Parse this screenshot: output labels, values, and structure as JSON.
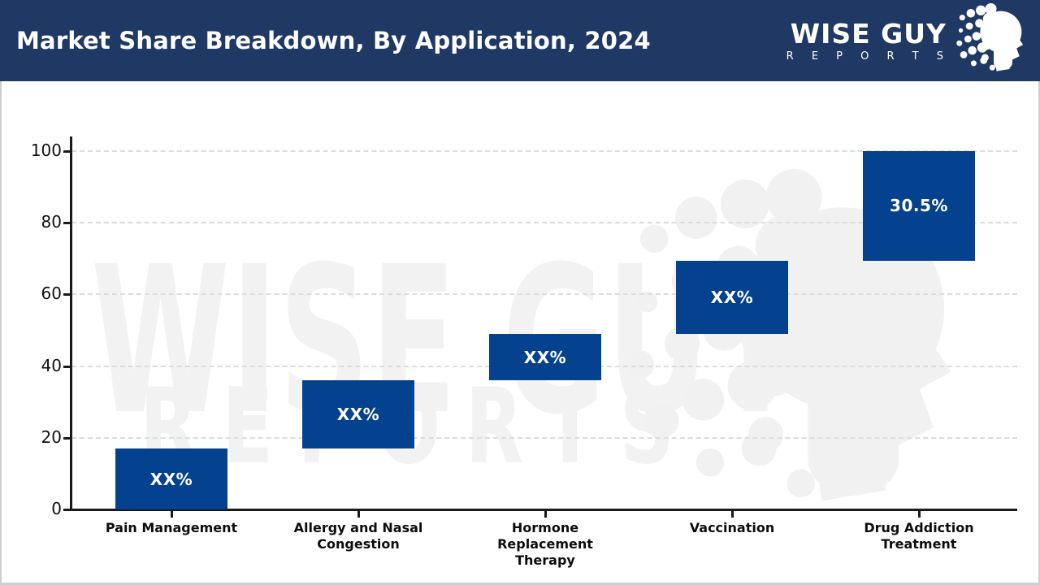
{
  "header": {
    "title": "Market Share Breakdown, By Application, 2024",
    "logo": {
      "line1": "WISE GUY",
      "line2": "R E P O R T S"
    }
  },
  "watermark": {
    "line1": "WISE GUY",
    "line2": "REPORTS"
  },
  "chart_data": {
    "type": "bar",
    "subtype": "waterfall",
    "title": "Market Share Breakdown, By Application, 2024",
    "xlabel": "",
    "ylabel": "",
    "ylim": [
      0,
      100
    ],
    "yticks": [
      0,
      20,
      40,
      60,
      80,
      100
    ],
    "grid": "horizontal-dashed",
    "legend": "none",
    "bar_color": "#04418f",
    "bar_label_color": "#ffffff",
    "categories": [
      "Pain Management",
      "Allergy and Nasal\nCongestion",
      "Hormone\nReplacement\nTherapy",
      "Vaccination",
      "Drug Addiction\nTreatment"
    ],
    "segments": [
      {
        "category": "Pain Management",
        "start": 0,
        "end": 17,
        "value": 17,
        "label": "XX%"
      },
      {
        "category": "Allergy and Nasal Congestion",
        "start": 17,
        "end": 36,
        "value": 19,
        "label": "XX%"
      },
      {
        "category": "Hormone Replacement Therapy",
        "start": 36,
        "end": 49,
        "value": 13,
        "label": "XX%"
      },
      {
        "category": "Vaccination",
        "start": 49,
        "end": 69.5,
        "value": 20.5,
        "label": "XX%"
      },
      {
        "category": "Drug Addiction Treatment",
        "start": 69.5,
        "end": 100,
        "value": 30.5,
        "label": "30.5%"
      }
    ]
  },
  "colors": {
    "header_bg": "#1f3864",
    "bar": "#04418f",
    "gridline": "#dcdcdc",
    "axis": "#1a1a1a",
    "watermark": "#f2f2f2",
    "page_edge": "#cfcfcf"
  }
}
